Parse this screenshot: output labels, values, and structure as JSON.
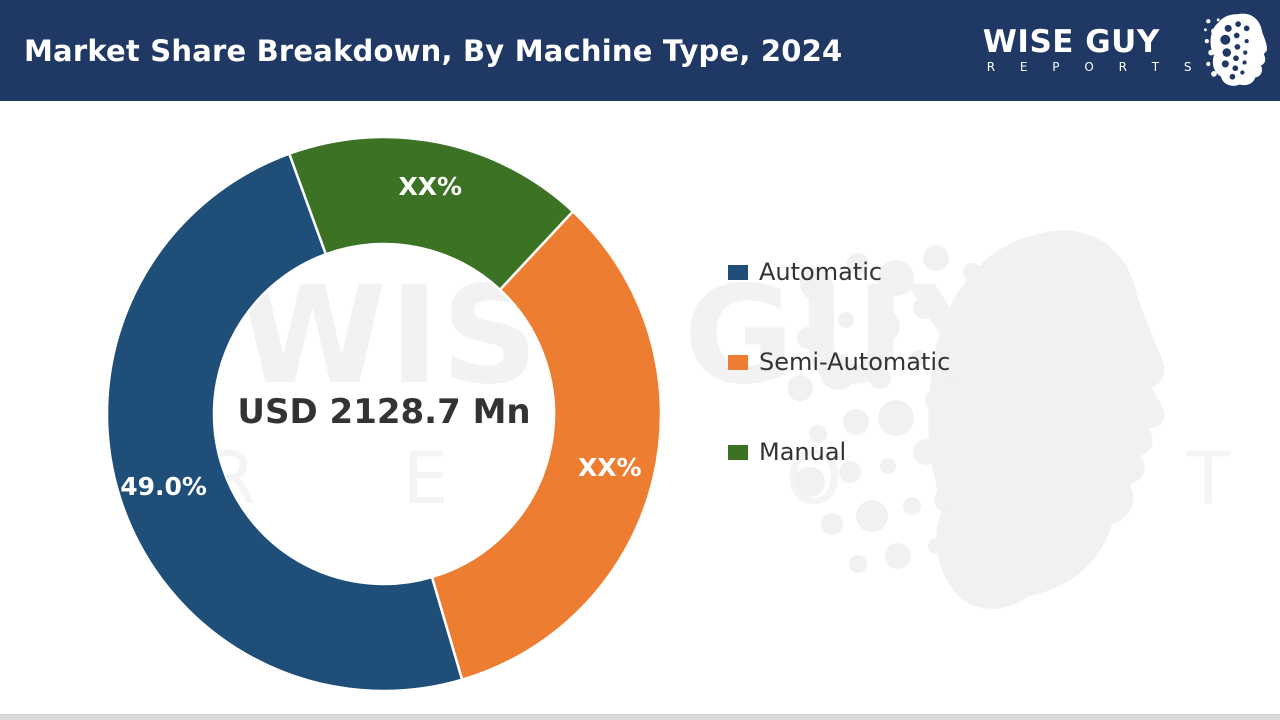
{
  "header": {
    "bg_color": "#1f3864",
    "logo": {
      "name": "WISE GUY",
      "sub": "R E P O R T S"
    }
  },
  "chart_data": {
    "type": "pie",
    "subtype": "donut",
    "title": "Market Share Breakdown, By Machine Type, 2024",
    "center_label": "USD 2128.7 Mn",
    "start_angle_deg": 110,
    "direction": "counterclockwise",
    "legend_position": "right",
    "series": [
      {
        "name": "Automatic",
        "label": "49.0%",
        "value_pct": 49.0,
        "color": "#1f4e79"
      },
      {
        "name": "Semi-Automatic",
        "label": "XX%",
        "value_pct": 33.5,
        "color": "#ed7d31"
      },
      {
        "name": "Manual",
        "label": "XX%",
        "value_pct": 17.5,
        "color": "#3c7224"
      }
    ]
  },
  "watermark": {
    "line1": "WISE GUY",
    "line2": "R E P O R T S"
  },
  "footer": {
    "bar_color": "#d9d9d9"
  }
}
